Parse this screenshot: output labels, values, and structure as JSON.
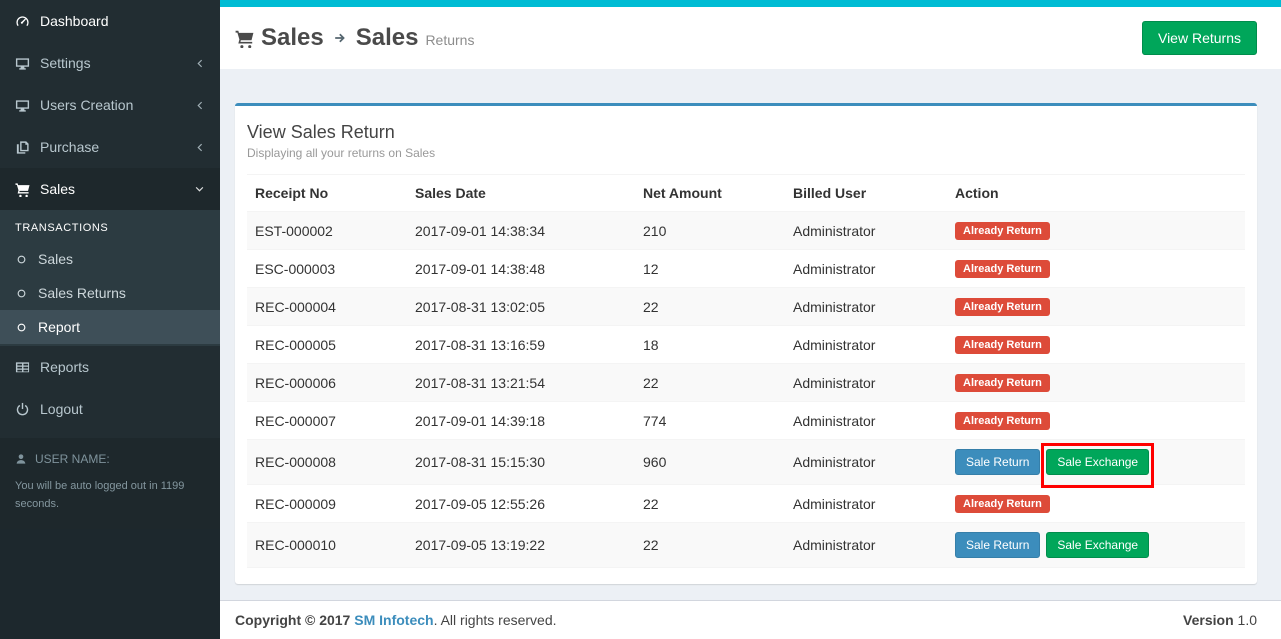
{
  "sidebar": {
    "items": [
      {
        "label": "Dashboard",
        "icon": "dashboard-icon"
      },
      {
        "label": "Settings",
        "icon": "desktop-icon",
        "chevron": "left"
      },
      {
        "label": "Users Creation",
        "icon": "desktop-icon",
        "chevron": "left"
      },
      {
        "label": "Purchase",
        "icon": "copy-icon",
        "chevron": "left"
      },
      {
        "label": "Sales",
        "icon": "cart-icon",
        "chevron": "down",
        "active": true
      }
    ],
    "transactions_header": "TRANSACTIONS",
    "submenu": [
      {
        "label": "Sales"
      },
      {
        "label": "Sales Returns"
      },
      {
        "label": "Report",
        "highlighted": true
      }
    ],
    "bottom_items": [
      {
        "label": "Reports",
        "icon": "table-icon"
      },
      {
        "label": "Logout",
        "icon": "power-icon"
      }
    ],
    "user_name_label": "USER NAME:",
    "auto_logout_text": "You will be auto logged out in 1199 seconds."
  },
  "header": {
    "breadcrumb": {
      "section": "Sales",
      "page": "Sales",
      "page_sub": "Returns"
    },
    "view_returns_button": "View Returns"
  },
  "panel": {
    "title": "View Sales Return",
    "subtitle": "Displaying all your returns on Sales"
  },
  "table": {
    "headers": [
      "Receipt No",
      "Sales Date",
      "Net Amount",
      "Billed User",
      "Action"
    ],
    "rows": [
      {
        "receipt_no": "EST-000002",
        "sales_date": "2017-09-01 14:38:34",
        "net_amount": "210",
        "billed_user": "Administrator",
        "actions": [
          "already_return"
        ]
      },
      {
        "receipt_no": "ESC-000003",
        "sales_date": "2017-09-01 14:38:48",
        "net_amount": "12",
        "billed_user": "Administrator",
        "actions": [
          "already_return"
        ]
      },
      {
        "receipt_no": "REC-000004",
        "sales_date": "2017-08-31 13:02:05",
        "net_amount": "22",
        "billed_user": "Administrator",
        "actions": [
          "already_return"
        ]
      },
      {
        "receipt_no": "REC-000005",
        "sales_date": "2017-08-31 13:16:59",
        "net_amount": "18",
        "billed_user": "Administrator",
        "actions": [
          "already_return"
        ]
      },
      {
        "receipt_no": "REC-000006",
        "sales_date": "2017-08-31 13:21:54",
        "net_amount": "22",
        "billed_user": "Administrator",
        "actions": [
          "already_return"
        ]
      },
      {
        "receipt_no": "REC-000007",
        "sales_date": "2017-09-01 14:39:18",
        "net_amount": "774",
        "billed_user": "Administrator",
        "actions": [
          "already_return"
        ]
      },
      {
        "receipt_no": "REC-000008",
        "sales_date": "2017-08-31 15:15:30",
        "net_amount": "960",
        "billed_user": "Administrator",
        "actions": [
          "sale_return",
          "sale_exchange"
        ],
        "highlighted_action": "sale_exchange"
      },
      {
        "receipt_no": "REC-000009",
        "sales_date": "2017-09-05 12:55:26",
        "net_amount": "22",
        "billed_user": "Administrator",
        "actions": [
          "already_return"
        ]
      },
      {
        "receipt_no": "REC-000010",
        "sales_date": "2017-09-05 13:19:22",
        "net_amount": "22",
        "billed_user": "Administrator",
        "actions": [
          "sale_return",
          "sale_exchange"
        ]
      }
    ]
  },
  "action_labels": {
    "already_return": "Already Return",
    "sale_return": "Sale Return",
    "sale_exchange": "Sale Exchange"
  },
  "footer": {
    "copyright": "Copyright © 2017 ",
    "company": "SM Infotech",
    "rights": ". All rights reserved.",
    "version_label": "Version",
    "version_value": "1.0"
  },
  "colors": {
    "top_accent": "#00bcd4",
    "panel_accent": "#3c8dbc",
    "button_green": "#00a65a",
    "button_blue": "#3c8dbc",
    "badge_red": "#dd4b39",
    "annotation_red": "#ff0000",
    "sidebar_bg": "#222d32"
  }
}
